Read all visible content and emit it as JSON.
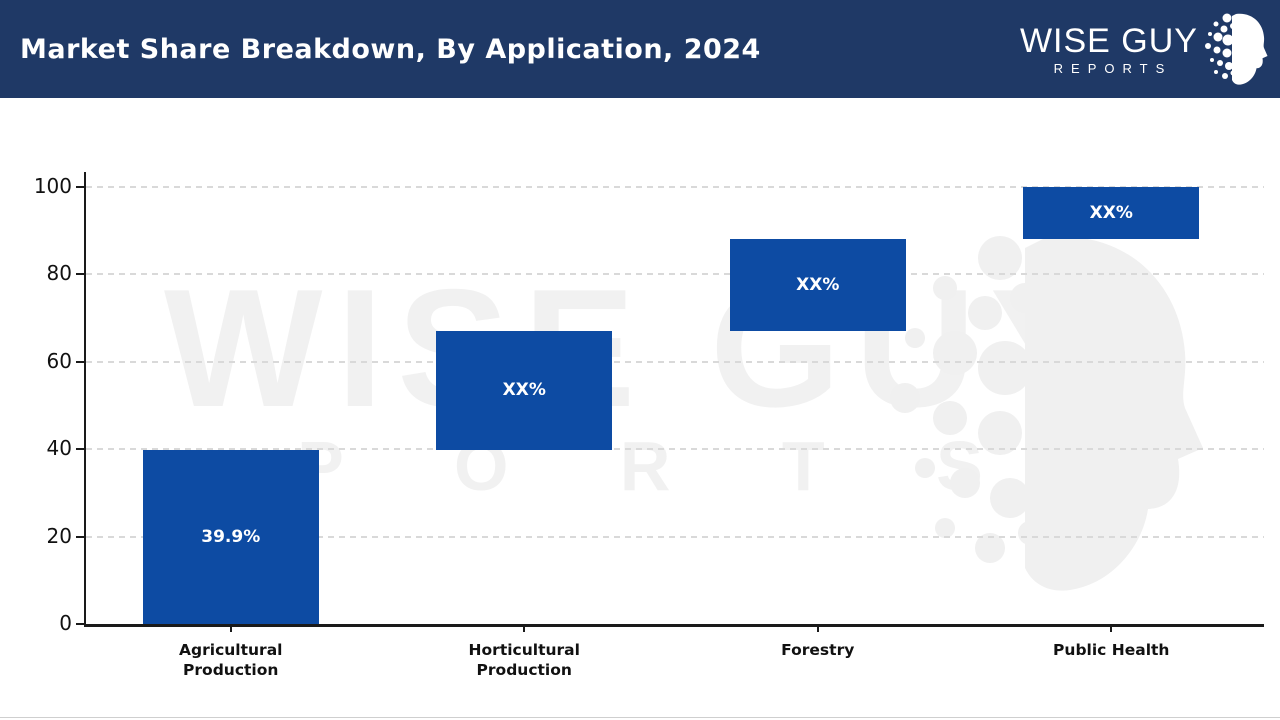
{
  "header": {
    "title": "Market Share Breakdown, By Application, 2024",
    "logo": {
      "wordmark": "WISE GUY",
      "subtext": "REPORTS"
    }
  },
  "watermark": {
    "line1": "WISE GUY",
    "line2": "P O R T S"
  },
  "colors": {
    "header_bg": "#1f3966",
    "bar_fill": "#0d4ba3",
    "axis": "#1a1a1a",
    "gridline": "#d9d9d9",
    "watermark_gray": "#f1f1f1",
    "title_text": "#ffffff",
    "tick_text": "#111111"
  },
  "chart_data": {
    "type": "bar",
    "subtype": "waterfall",
    "title": "Market Share Breakdown, By Application, 2024",
    "xlabel": "",
    "ylabel": "",
    "ylim": [
      0,
      100
    ],
    "yticks": [
      0,
      20,
      40,
      60,
      80,
      100
    ],
    "grid": "horizontal-dashed",
    "legend": "none",
    "categories": [
      "Agricultural\nProduction",
      "Horticultural\nProduction",
      "Forestry",
      "Public Health"
    ],
    "segments": [
      {
        "category": "Agricultural Production",
        "start": 0,
        "end": 39.9,
        "label": "39.9%"
      },
      {
        "category": "Horticultural Production",
        "start": 39.9,
        "end": 67,
        "label": "XX%"
      },
      {
        "category": "Forestry",
        "start": 67,
        "end": 88,
        "label": "XX%"
      },
      {
        "category": "Public Health",
        "start": 88,
        "end": 100,
        "label": "XX%"
      }
    ]
  }
}
